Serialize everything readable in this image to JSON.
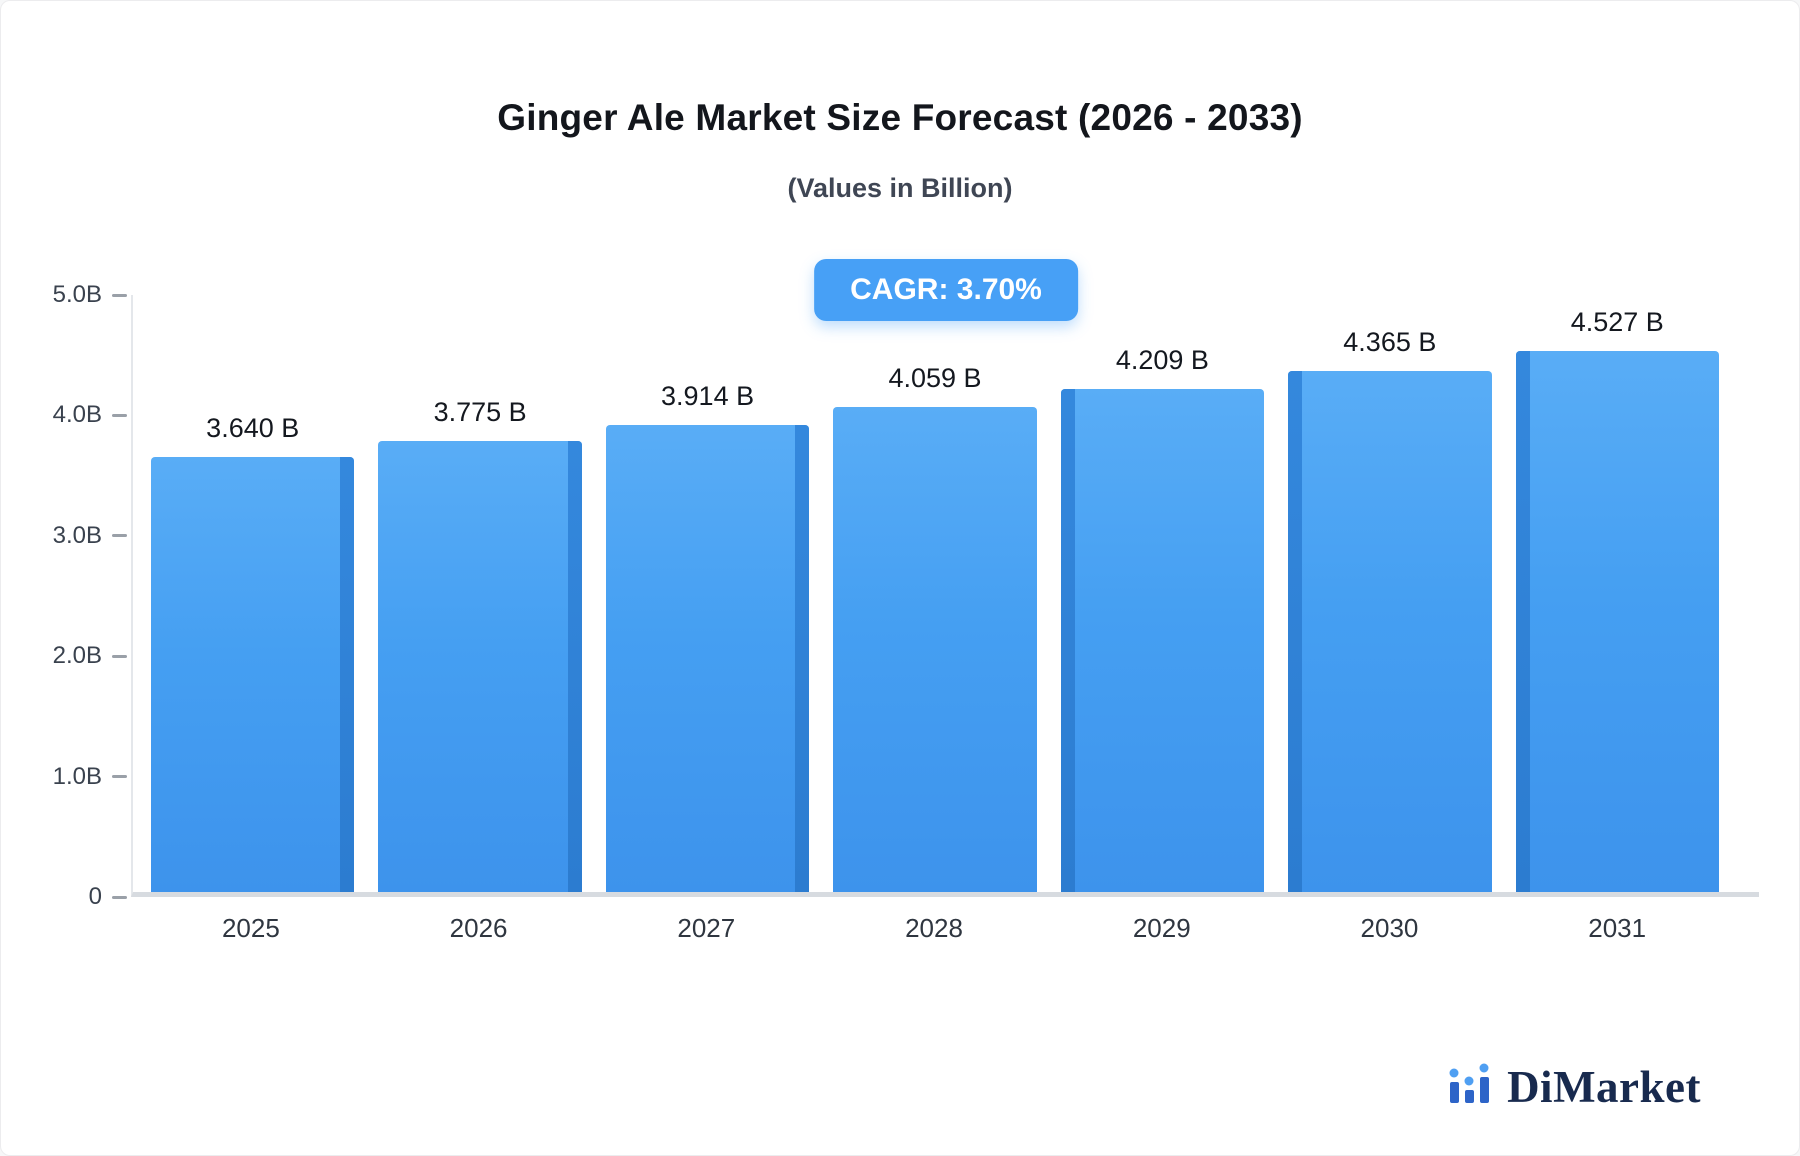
{
  "chart_data": {
    "type": "bar",
    "title": "Ginger Ale Market Size Forecast (2026 - 2033)",
    "subtitle": "(Values in Billion)",
    "annotation": "CAGR: 3.70%",
    "categories": [
      "2025",
      "2026",
      "2027",
      "2028",
      "2029",
      "2030",
      "2031"
    ],
    "values": [
      3.64,
      3.775,
      3.914,
      4.059,
      4.209,
      4.365,
      4.527
    ],
    "value_labels": [
      "3.640 B",
      "3.775 B",
      "3.914 B",
      "4.059 B",
      "4.209 B",
      "4.365 B",
      "4.527 B"
    ],
    "xlabel": "",
    "ylabel": "",
    "ylim": [
      0,
      5
    ],
    "yticks": [
      {
        "value": 5,
        "label": "5.0B"
      },
      {
        "value": 4,
        "label": "4.0B"
      },
      {
        "value": 3,
        "label": "3.0B"
      },
      {
        "value": 2,
        "label": "2.0B"
      },
      {
        "value": 1,
        "label": "1.0B"
      },
      {
        "value": 0,
        "label": "0"
      }
    ],
    "grid": false,
    "legend": false,
    "colors": {
      "bar_top": "#59adf6",
      "bar_bottom": "#3d93ec",
      "bar_edge": "#2c7cd0",
      "badge_bg": "#47a0f6",
      "badge_text": "#ffffff"
    }
  },
  "logo": {
    "text": "DiMarket"
  }
}
